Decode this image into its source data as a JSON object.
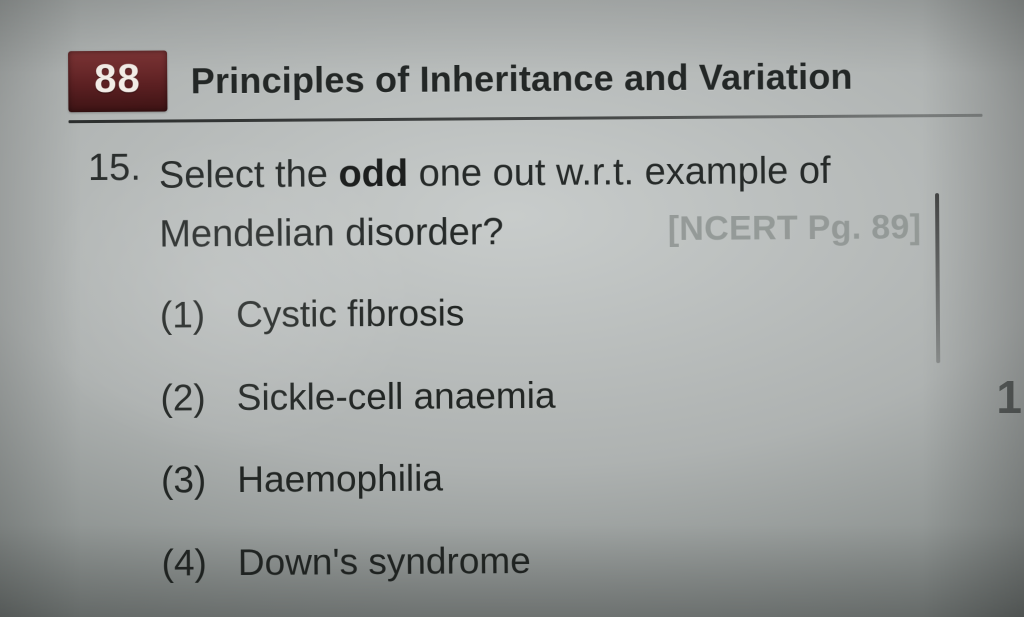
{
  "header": {
    "badge_number": "88",
    "chapter_title": "Principles of Inheritance and Variation",
    "badge_bg": "#5c2022",
    "badge_text_color": "#f2ece6"
  },
  "question": {
    "number": "15.",
    "text_prefix": "Select the ",
    "text_odd": "odd",
    "text_suffix": " one out w.r.t. example of Mendelian disorder?",
    "reference": "[NCERT Pg. 89]",
    "reference_color": "#8e9391"
  },
  "options": [
    {
      "label": "(1)",
      "text": "Cystic fibrosis"
    },
    {
      "label": "(2)",
      "text": "Sickle-cell anaemia"
    },
    {
      "label": "(3)",
      "text": "Haemophilia"
    },
    {
      "label": "(4)",
      "text": "Down's syndrome"
    }
  ],
  "page_edge_digit": "1",
  "styling": {
    "body_bg": "#aeb2b1",
    "text_color": "#232726",
    "title_fontsize_pt": 27,
    "body_fontsize_pt": 28,
    "option_fontsize_pt": 28
  }
}
